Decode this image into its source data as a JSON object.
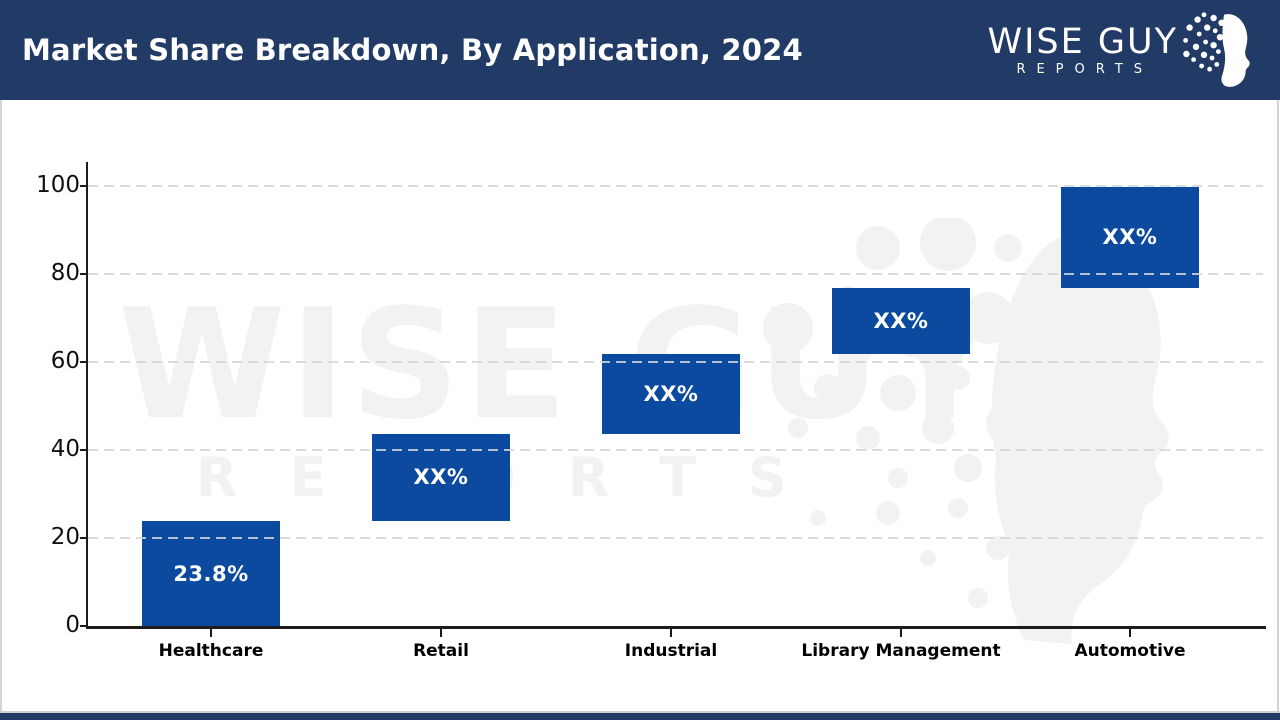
{
  "header": {
    "title": "Market Share Breakdown, By Application, 2024",
    "logo": {
      "line1": "WISE GUY",
      "line2": "REPORTS"
    }
  },
  "watermark": {
    "line1": "WISE GUY",
    "line2": "REPORTS"
  },
  "colors": {
    "header_navy": "#213a66",
    "bar_blue": "#0b4a9f",
    "grid_gray": "#d6d6d6",
    "watermark_gray": "#f2f2f2",
    "axis_black": "#1c1c1c",
    "bar_label_white": "#ffffff"
  },
  "chart_data": {
    "type": "bar",
    "subtype": "waterfall",
    "title": "Market Share Breakdown, By Application, 2024",
    "xlabel": "",
    "ylabel": "",
    "categories": [
      "Healthcare",
      "Retail",
      "Industrial",
      "Library Management",
      "Automotive"
    ],
    "segments": [
      {
        "category": "Healthcare",
        "start": 0,
        "end": 23.8,
        "label": "23.8%"
      },
      {
        "category": "Retail",
        "start": 23.8,
        "end": 43.7,
        "label": "XX%"
      },
      {
        "category": "Industrial",
        "start": 43.7,
        "end": 61.9,
        "label": "XX%"
      },
      {
        "category": "Library Management",
        "start": 61.9,
        "end": 76.9,
        "label": "XX%"
      },
      {
        "category": "Automotive",
        "start": 76.9,
        "end": 99.8,
        "label": "XX%"
      }
    ],
    "yticks": [
      0,
      20,
      40,
      60,
      80,
      100
    ],
    "ylim": [
      0,
      105
    ],
    "grid": "horizontal dashed",
    "legend": "none"
  }
}
